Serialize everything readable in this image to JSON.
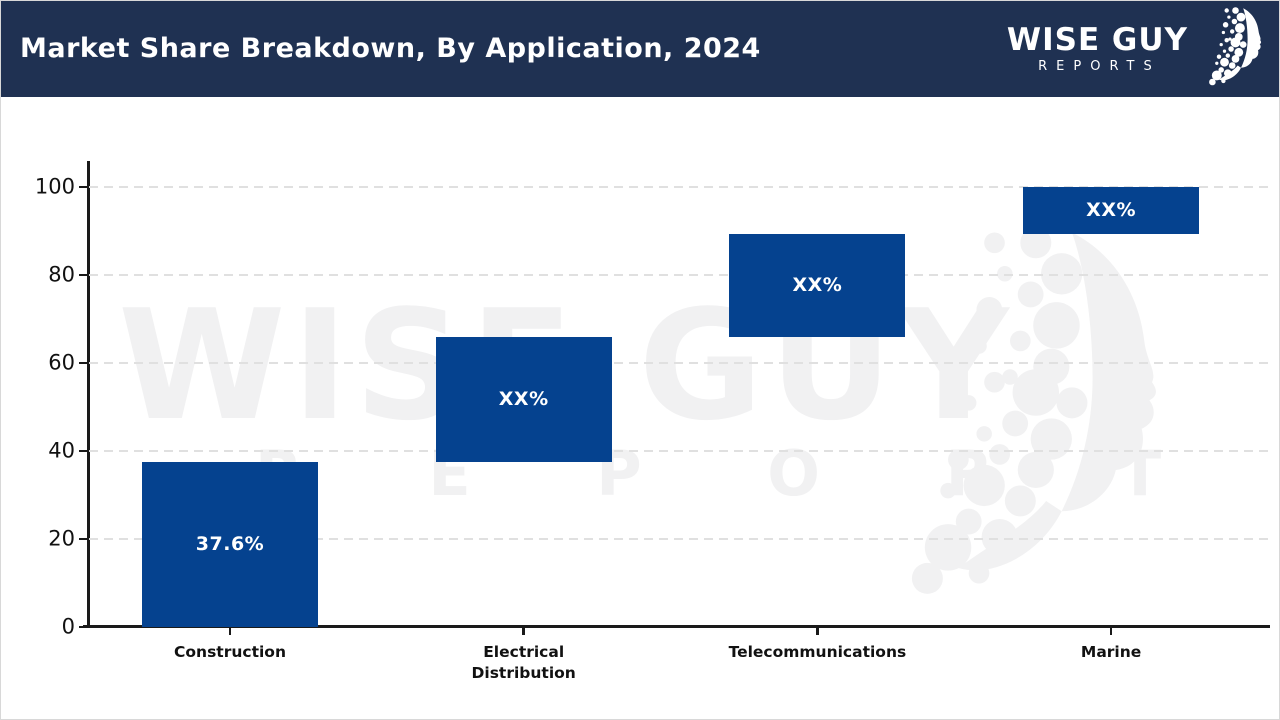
{
  "header": {
    "title": "Market Share Breakdown, By Application, 2024",
    "logo": {
      "line1": "WISE GUY",
      "line2": "REPORTS"
    }
  },
  "watermark": {
    "line1": "WISE GUY",
    "line2": "REPORTS"
  },
  "colors": {
    "header_bg": "#1f3152",
    "bar": "#05428f",
    "bar_label": "#ffffff",
    "grid": "#e0e0e0",
    "axis": "#1a1a1a",
    "watermark": "#f1f1f2",
    "border": "#d8d8d8"
  },
  "chart_data": {
    "type": "bar",
    "variant": "waterfall",
    "title": "Market Share Breakdown, By Application, 2024",
    "categories": [
      "Construction",
      "Electrical Distribution",
      "Telecommunications",
      "Marine"
    ],
    "category_lines": [
      [
        "Construction"
      ],
      [
        "Electrical",
        "Distribution"
      ],
      [
        "Telecommunications"
      ],
      [
        "Marine"
      ]
    ],
    "bars": [
      {
        "category": "Construction",
        "start": 0,
        "end": 37.6,
        "value": 37.6,
        "label": "37.6%"
      },
      {
        "category": "Electrical Distribution",
        "start": 37.6,
        "end": 66.0,
        "value": 28.4,
        "label": "XX%"
      },
      {
        "category": "Telecommunications",
        "start": 66.0,
        "end": 89.4,
        "value": 23.4,
        "label": "XX%"
      },
      {
        "category": "Marine",
        "start": 89.4,
        "end": 100.0,
        "value": 10.6,
        "label": "XX%"
      }
    ],
    "xlabel": "",
    "ylabel": "",
    "ylim": [
      0,
      100
    ],
    "yticks": [
      0,
      20,
      40,
      60,
      80,
      100
    ],
    "grid": {
      "horizontal": true,
      "style": "dashed"
    },
    "legend": "none",
    "bar_color": "#05428f",
    "bar_label_color": "#ffffff"
  }
}
